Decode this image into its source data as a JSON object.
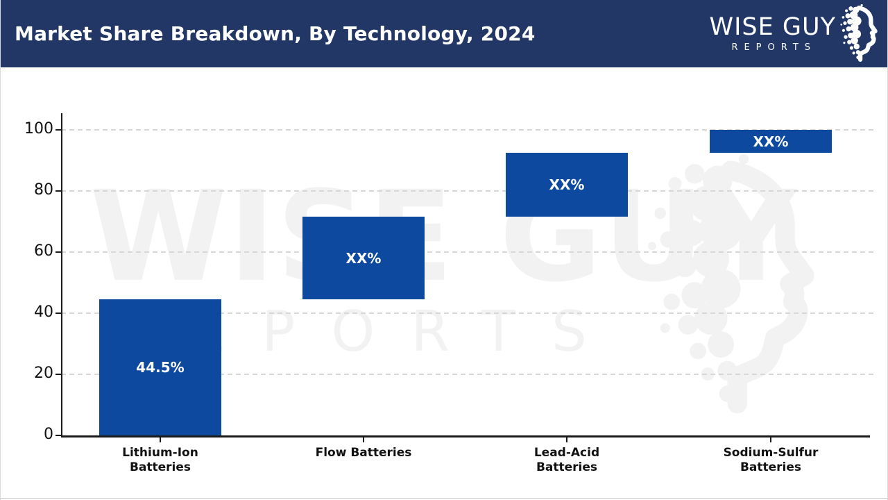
{
  "header": {
    "title": "Market Share Breakdown, By Technology, 2024",
    "logo": {
      "wordmark": "WISE GUY",
      "subtext": "REPORTS"
    }
  },
  "watermark": {
    "line1": "WISE GUY",
    "line2": "REPORTS"
  },
  "colors": {
    "header_bg": "#223765",
    "bar": "#0d499e",
    "bar_label": "#ffffff",
    "grid": "#d7d7d7",
    "axis": "#1a1a1a",
    "tick_label": "#111111",
    "watermark": "#f2f2f3"
  },
  "chart_data": {
    "type": "bar",
    "variant": "waterfall",
    "title": "Market Share Breakdown, By Technology, 2024",
    "categories": [
      [
        "Lithium-Ion",
        "Batteries"
      ],
      [
        "Flow Batteries"
      ],
      [
        "Lead-Acid",
        "Batteries"
      ],
      [
        "Sodium-Sulfur",
        "Batteries"
      ]
    ],
    "segments": [
      {
        "category": "Lithium-Ion Batteries",
        "start": 0,
        "end": 44.5,
        "label": "44.5%"
      },
      {
        "category": "Flow Batteries",
        "start": 44.5,
        "end": 71.5,
        "label": "XX%"
      },
      {
        "category": "Lead-Acid Batteries",
        "start": 71.5,
        "end": 92.5,
        "label": "XX%"
      },
      {
        "category": "Sodium-Sulfur Batteries",
        "start": 92.5,
        "end": 100,
        "label": "XX%"
      }
    ],
    "ylim": [
      0,
      100
    ],
    "yticks": [
      0,
      20,
      40,
      60,
      80,
      100
    ],
    "xlabel": "",
    "ylabel": "",
    "grid": {
      "axis": "y",
      "style": "dashed"
    },
    "legend": null
  }
}
